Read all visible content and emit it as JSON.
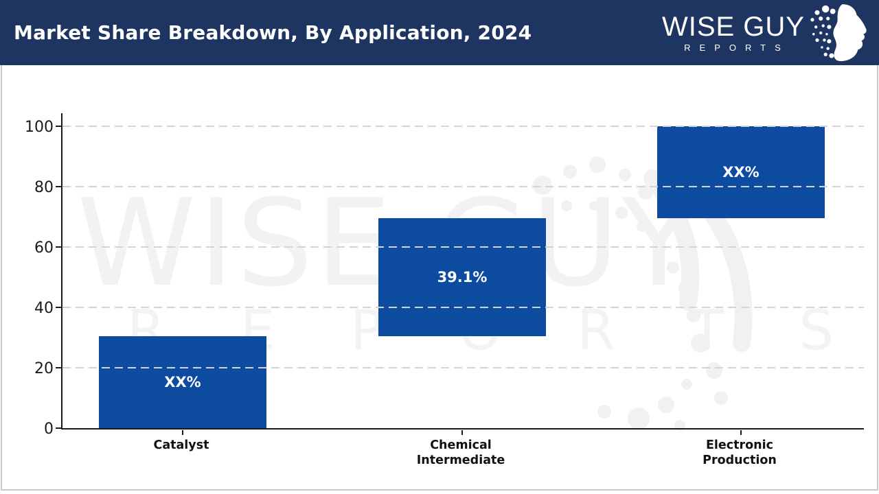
{
  "header": {
    "title": "Market Share Breakdown, By Application, 2024",
    "bg_color": "#1e3562",
    "logo": {
      "line1": "WISE GUY",
      "line2": "REPORTS"
    }
  },
  "watermark": {
    "line1": "WISE GUY",
    "line2": "R E P O R T S"
  },
  "chart_data": {
    "type": "bar",
    "variant": "floating-stacked-percent",
    "title": "Market Share Breakdown, By Application, 2024",
    "categories": [
      "Catalyst",
      "Chemical Intermediate",
      "Electronic Production"
    ],
    "segments": [
      {
        "category": "Catalyst",
        "category_lines": [
          "Catalyst"
        ],
        "start": 0,
        "end": 30.5,
        "height": 30.5,
        "label": "XX%"
      },
      {
        "category": "Chemical Intermediate",
        "category_lines": [
          "Chemical",
          "Intermediate"
        ],
        "start": 30.5,
        "end": 69.6,
        "height": 39.1,
        "label": "39.1%"
      },
      {
        "category": "Electronic Production",
        "category_lines": [
          "Electronic",
          "Production"
        ],
        "start": 69.6,
        "end": 100,
        "height": 30.4,
        "label": "XX%"
      }
    ],
    "yticks": [
      0,
      20,
      40,
      60,
      80,
      100
    ],
    "ylim": [
      0,
      105
    ],
    "xlabel": "",
    "ylabel": "",
    "grid": "horizontal-dashed",
    "legend": "none",
    "colors": {
      "bar": "#0c4ba0",
      "bar_label": "#ffffff",
      "gridline": "#d4d4d4",
      "axis": "#1a1a1a",
      "tick_label": "#1a1a1a"
    }
  }
}
